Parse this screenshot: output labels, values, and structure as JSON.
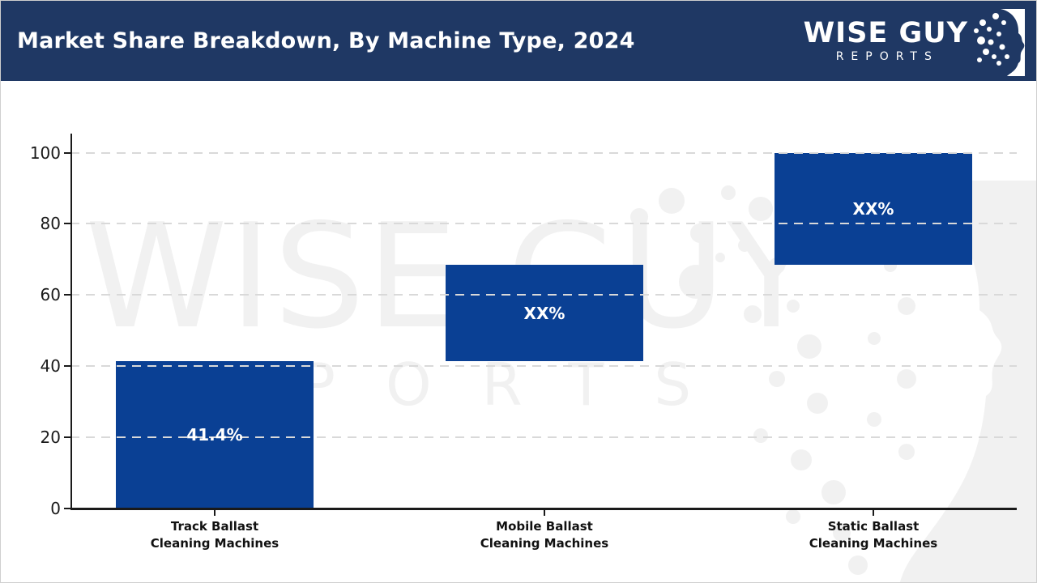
{
  "header": {
    "title": "Market Share Breakdown, By Machine Type, 2024",
    "logo": {
      "line1": "WISE GUY",
      "line2": "REPORTS"
    }
  },
  "watermark": {
    "line1": "WISE GUY",
    "line2": "REPORTS"
  },
  "chart_data": {
    "type": "bar",
    "variant": "waterfall",
    "title": "Market Share Breakdown, By Machine Type, 2024",
    "categories": [
      {
        "line1": "Track Ballast",
        "line2": "Cleaning Machines"
      },
      {
        "line1": "Mobile Ballast",
        "line2": "Cleaning Machines"
      },
      {
        "line1": "Static Ballast",
        "line2": "Cleaning Machines"
      }
    ],
    "bars": [
      {
        "start": 0,
        "end": 41.4,
        "label": "41.4%"
      },
      {
        "start": 41.4,
        "end": 68.5,
        "label": "XX%"
      },
      {
        "start": 68.5,
        "end": 100,
        "label": "XX%"
      }
    ],
    "yticks": [
      0,
      20,
      40,
      60,
      80,
      100
    ],
    "ylim": [
      0,
      105
    ],
    "grid": "horizontal-dashed",
    "legend": null,
    "bar_color": "#0a4094",
    "value_label_color": "#ffffff",
    "grid_color": "#d9d9d9",
    "axis_color": "#1a1a1a"
  },
  "colors": {
    "header_bg": "#1f3864",
    "background": "#ffffff",
    "watermark": "#f1f1f1"
  }
}
